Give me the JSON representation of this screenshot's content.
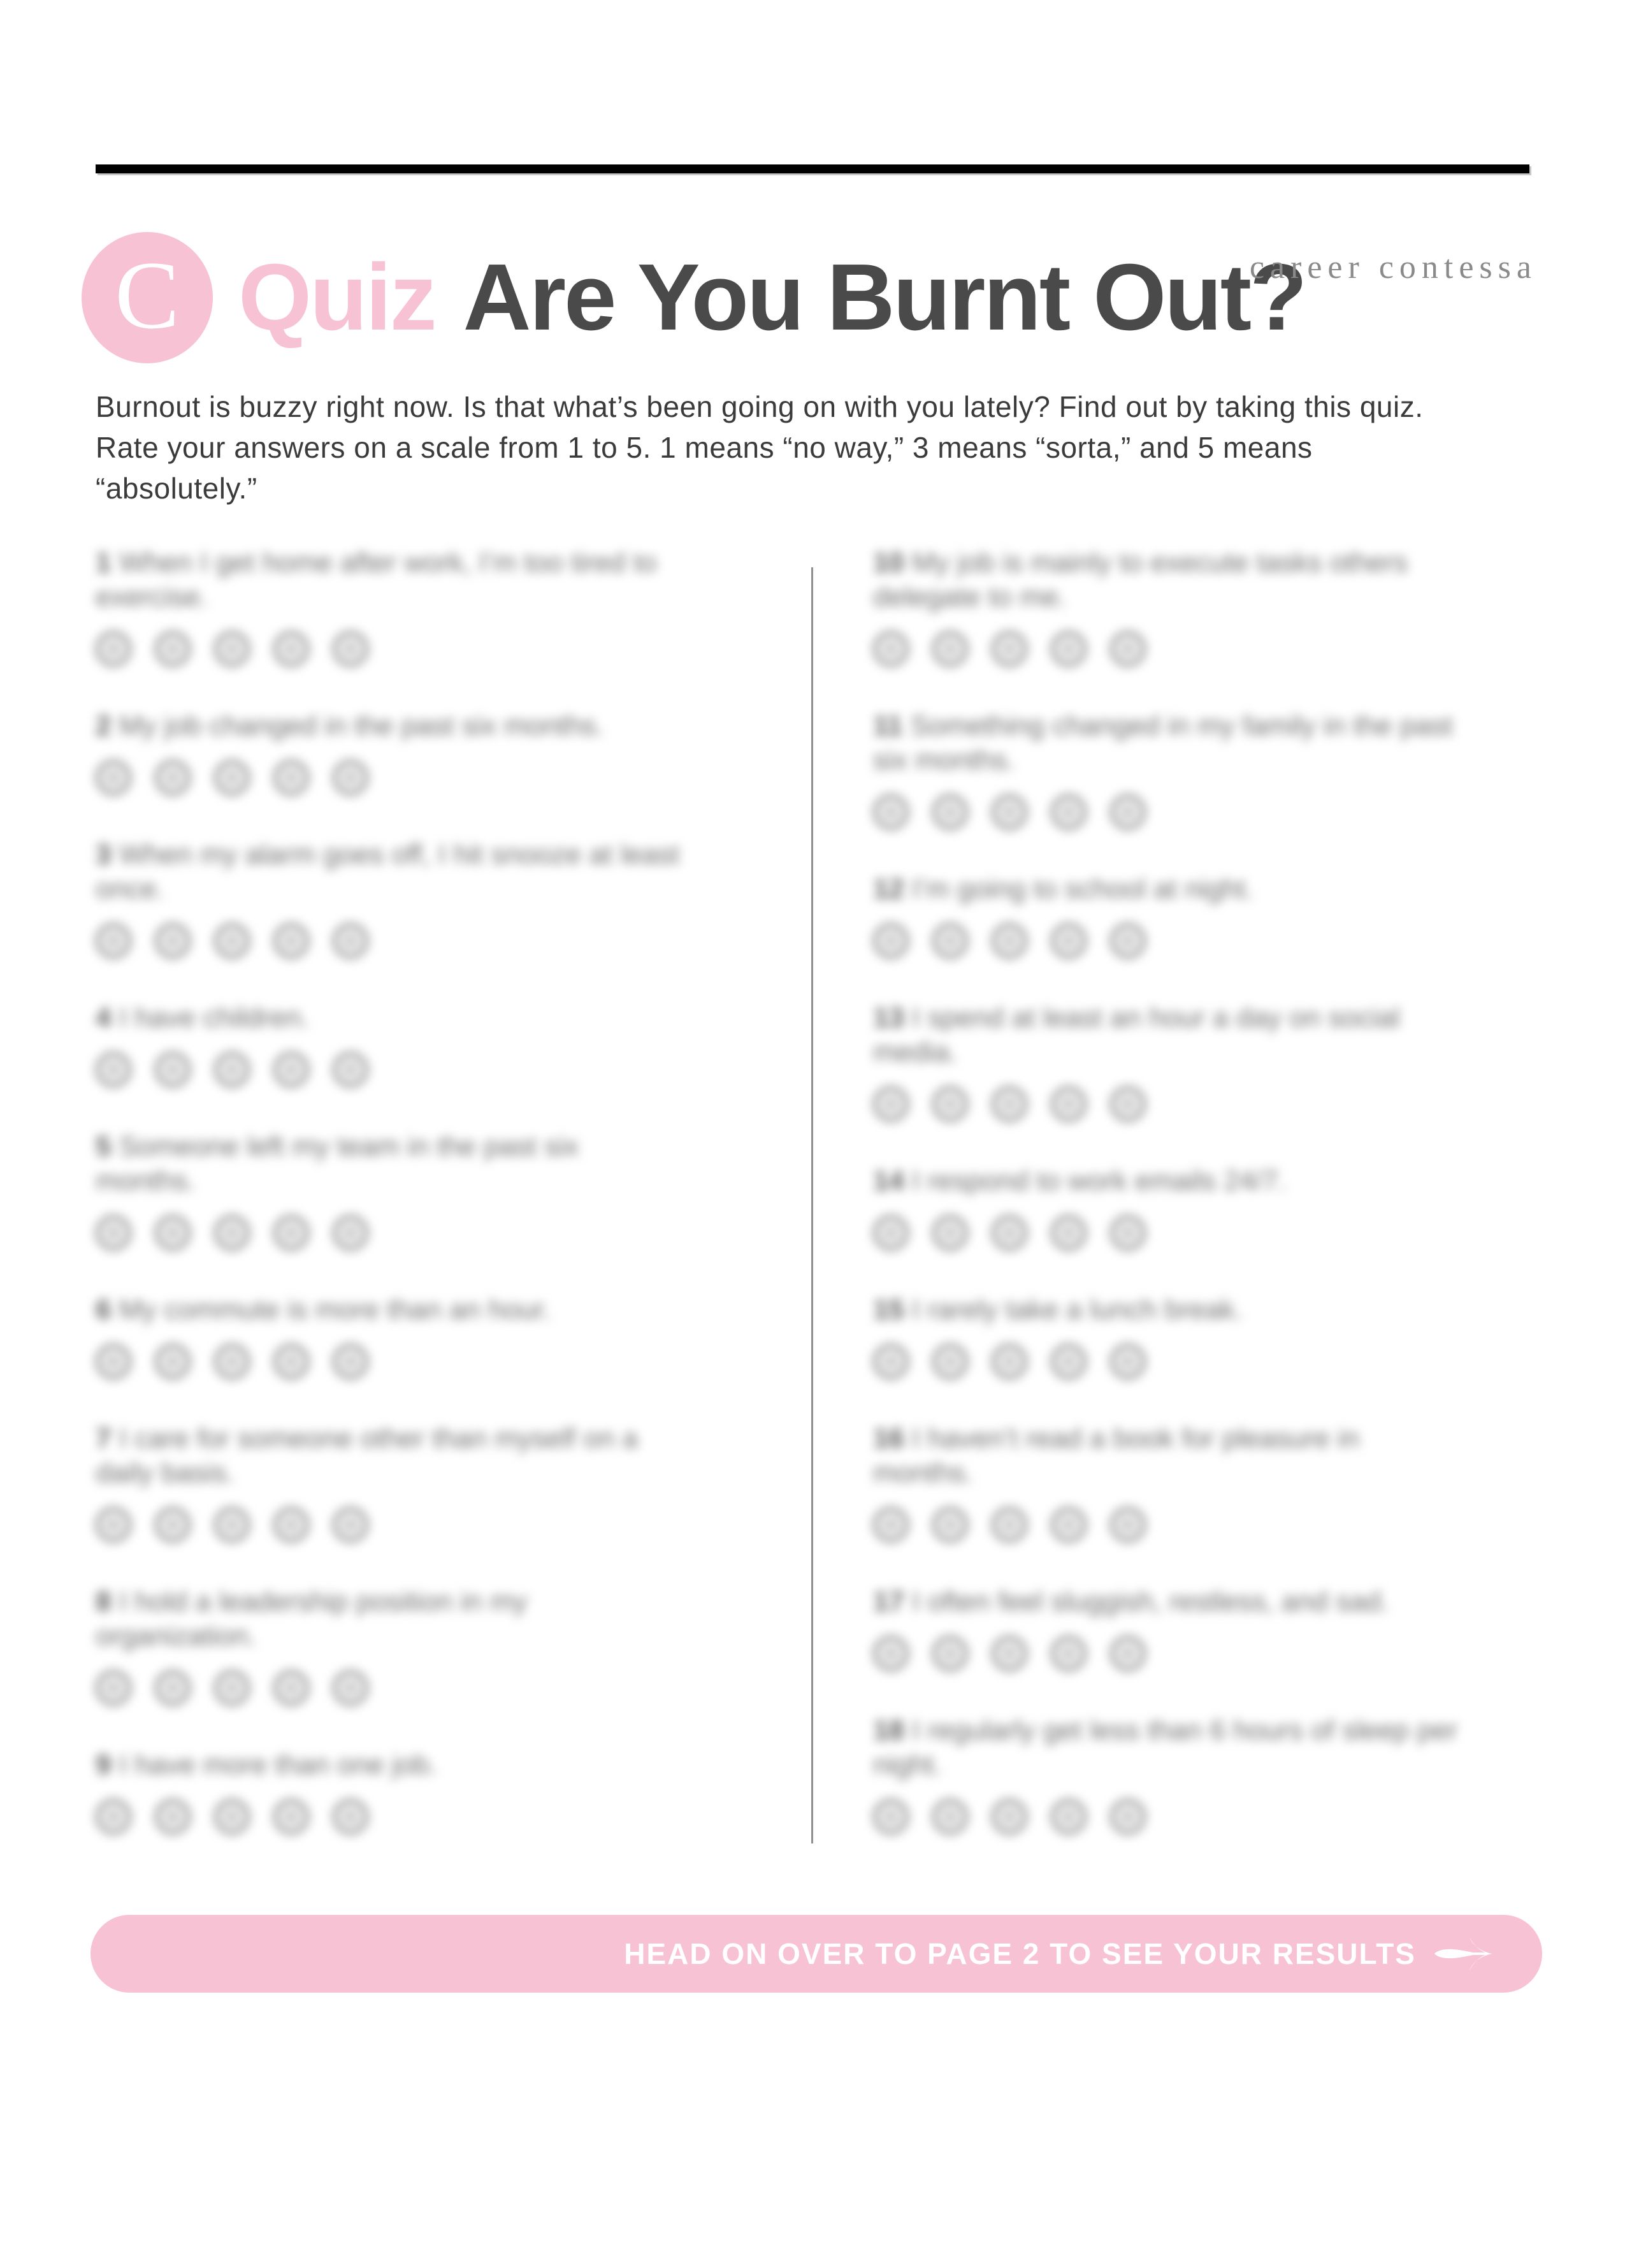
{
  "brand": {
    "logo_text": "career contessa"
  },
  "header": {
    "badge_letter": "C",
    "title_highlight": "Quiz",
    "title_rest": "Are You Burnt Out?",
    "intro": "Burnout is buzzy right now. Is that what’s been going on with you lately? Find out by taking this quiz. Rate your answers on a scale from 1 to 5. 1 means “no way,” 3 means “sorta,” and 5 means “absolutely.”"
  },
  "quiz": {
    "scale_points": 5,
    "scale_min_label": "no way",
    "scale_mid_label": "sorta",
    "scale_max_label": "absolutely",
    "columns": [
      [
        {
          "num": "1",
          "text": "When I get home after work, I’m too tired to exercise."
        },
        {
          "num": "2",
          "text": "My job changed in the past six months."
        },
        {
          "num": "3",
          "text": "When my alarm goes off, I hit snooze at least once."
        },
        {
          "num": "4",
          "text": "I have children."
        },
        {
          "num": "5",
          "text": "Someone left my team in the past six months."
        },
        {
          "num": "6",
          "text": "My commute is more than an hour."
        },
        {
          "num": "7",
          "text": "I care for someone other than myself on a daily basis."
        },
        {
          "num": "8",
          "text": "I hold a leadership position in my organization."
        },
        {
          "num": "9",
          "text": "I have more than one job."
        }
      ],
      [
        {
          "num": "10",
          "text": "My job is mainly to execute tasks others delegate to me."
        },
        {
          "num": "11",
          "text": "Something changed in my family in the past six months."
        },
        {
          "num": "12",
          "text": "I’m going to school at night."
        },
        {
          "num": "13",
          "text": "I spend at least an hour a day on social media."
        },
        {
          "num": "14",
          "text": "I respond to work emails 24/7."
        },
        {
          "num": "15",
          "text": "I rarely take a lunch break."
        },
        {
          "num": "16",
          "text": "I haven’t read a book for pleasure in months."
        },
        {
          "num": "17",
          "text": "I often feel sluggish, restless, and sad."
        },
        {
          "num": "18",
          "text": "I regularly get less than 6 hours of sleep per night."
        }
      ]
    ]
  },
  "footer": {
    "banner_text": "HEAD ON OVER TO PAGE 2 TO SEE YOUR RESULTS",
    "arrow_icon": "feathered-arrow-right"
  },
  "colors": {
    "accent_pink": "#F8C2D5",
    "title_gray": "#4a4a4a",
    "logo_gray": "#8a8a8a",
    "question_gray": "#6f6f6f",
    "rule_black": "#000000",
    "banner_text_white": "#ffffff"
  }
}
